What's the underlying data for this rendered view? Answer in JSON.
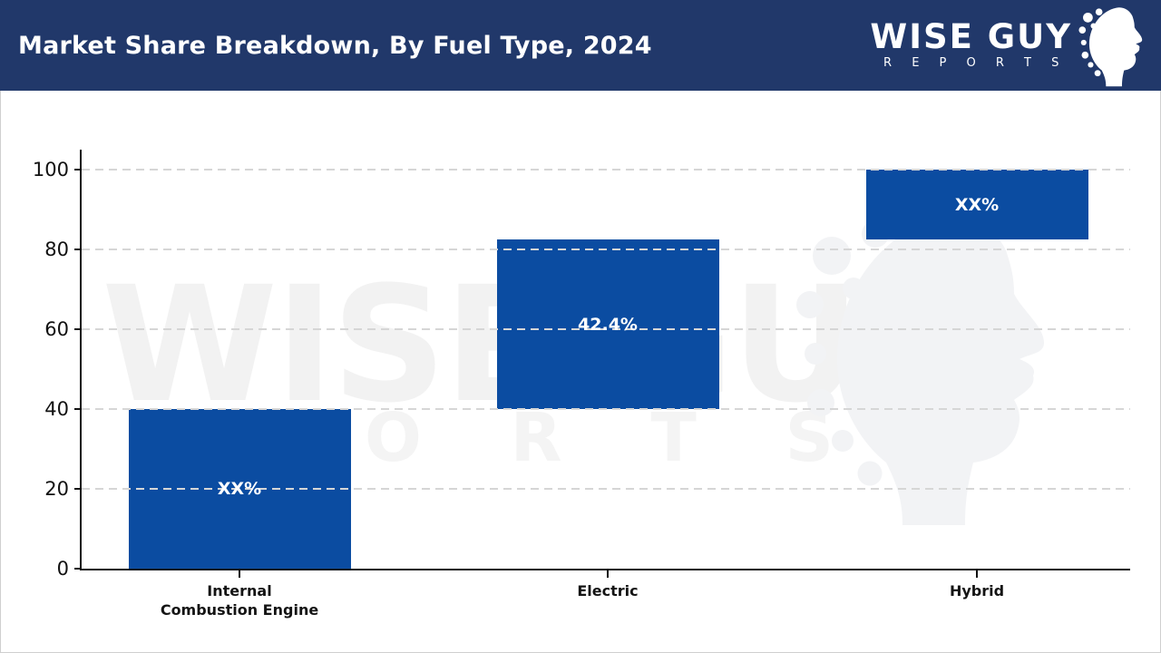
{
  "header": {
    "title": "Market Share Breakdown, By Fuel Type, 2024",
    "logo": {
      "line1": "WISE GUY",
      "line2": "R E P O R T S"
    }
  },
  "watermark": {
    "line1": "WISE GUY",
    "line2": "P O R T S"
  },
  "chart_data": {
    "type": "bar",
    "subtype": "waterfall",
    "title": "Market Share Breakdown, By Fuel Type, 2024",
    "xlabel": "",
    "ylabel": "",
    "categories": [
      "Internal Combustion Engine",
      "Electric",
      "Hybrid"
    ],
    "category_label_lines": [
      [
        "Internal",
        "Combustion Engine"
      ],
      [
        "Electric"
      ],
      [
        "Hybrid"
      ]
    ],
    "segments": [
      {
        "category": "Internal Combustion Engine",
        "start": 0,
        "end": 40,
        "value_estimate": 40,
        "label": "XX%"
      },
      {
        "category": "Electric",
        "start": 40,
        "end": 82.4,
        "value_estimate": 42.4,
        "label": "42.4%"
      },
      {
        "category": "Hybrid",
        "start": 82.4,
        "end": 100,
        "value_estimate": 17.6,
        "label": "XX%"
      }
    ],
    "yticks": [
      0,
      20,
      40,
      60,
      80,
      100
    ],
    "ylim": [
      0,
      105
    ],
    "grid": "dashed-horizontal-on-top",
    "legend": "none"
  },
  "colors": {
    "header_navy": "#21386A",
    "bar_blue": "#0B4CA1",
    "grid_gray": "#D6D6D6",
    "watermark_gray": "#F2F2F2",
    "axis_black": "#111111"
  }
}
